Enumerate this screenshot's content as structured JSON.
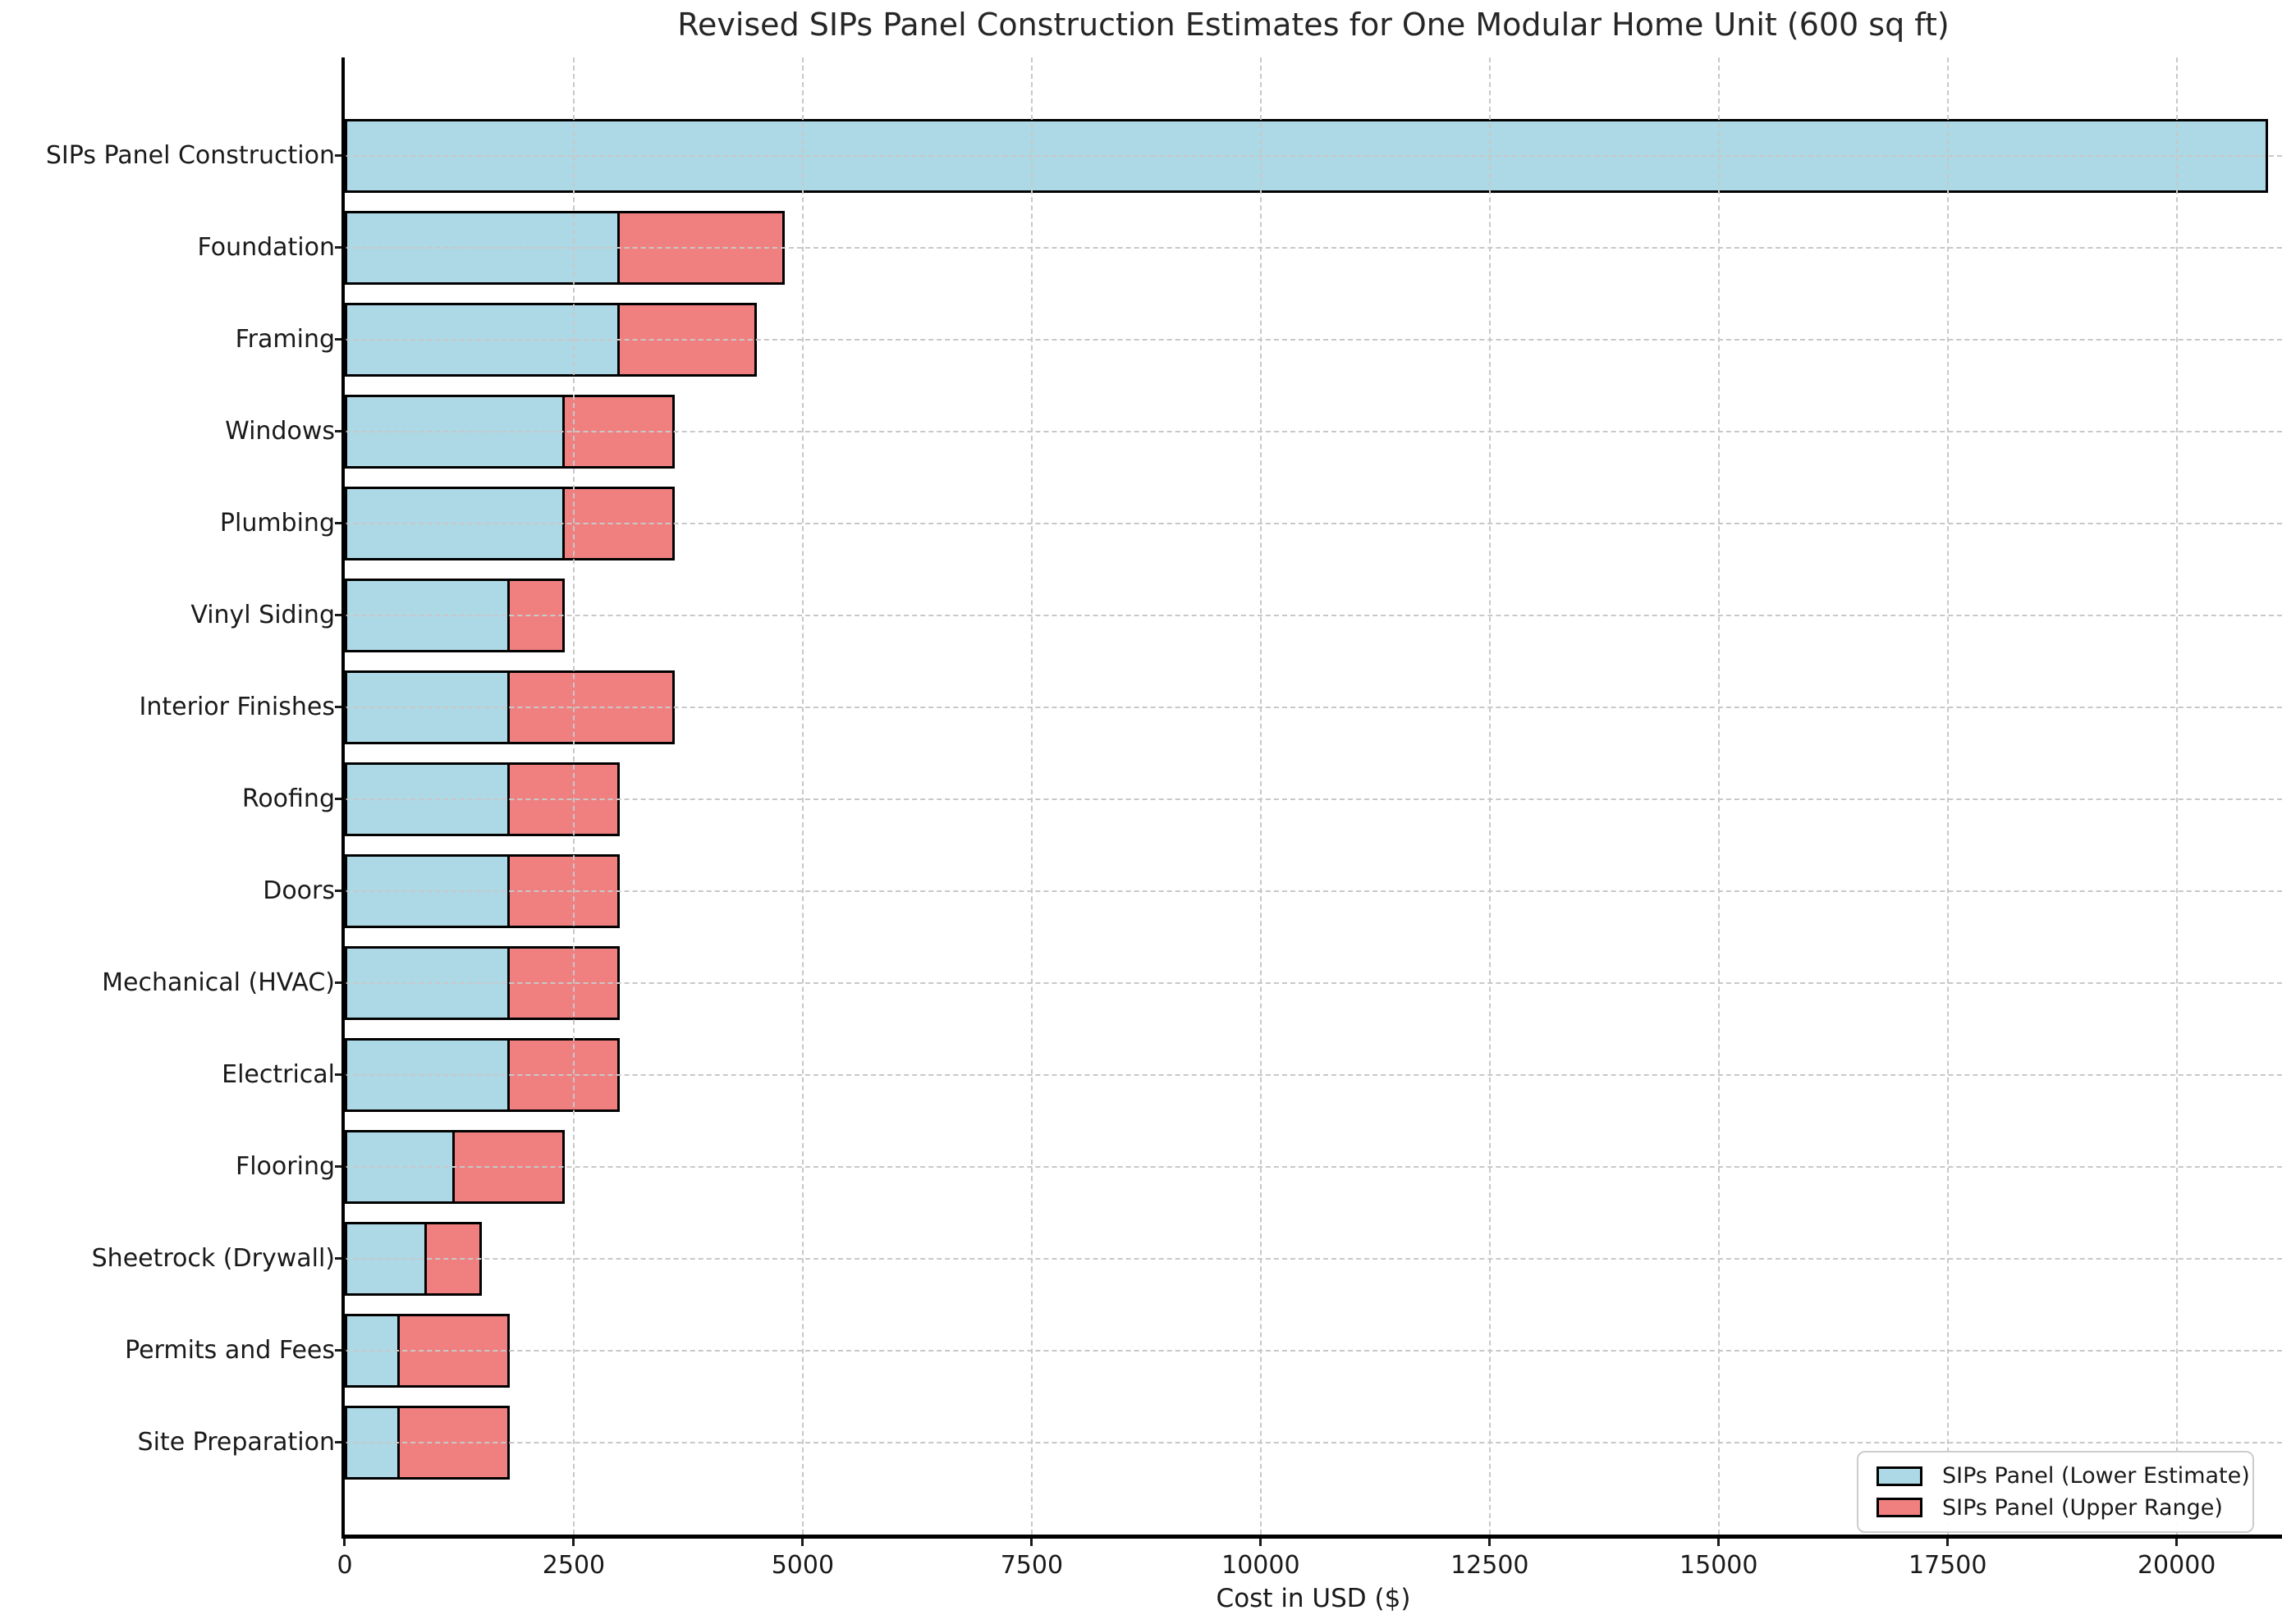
{
  "title": "Revised SIPs Panel Construction Estimates for One Modular Home Unit (600 sq ft)",
  "chart_data": {
    "type": "bar",
    "orientation": "horizontal",
    "title": "Revised SIPs Panel Construction Estimates for One Modular Home Unit (600 sq ft)",
    "xlabel": "Cost in USD ($)",
    "ylabel": "",
    "categories": [
      "SIPs Panel Construction",
      "Foundation",
      "Framing",
      "Windows",
      "Plumbing",
      "Vinyl Siding",
      "Interior Finishes",
      "Roofing",
      "Doors",
      "Mechanical (HVAC)",
      "Electrical",
      "Flooring",
      "Sheetrock (Drywall)",
      "Permits and Fees",
      "Site Preparation"
    ],
    "series": [
      {
        "name": "SIPs Panel (Lower Estimate)",
        "color": "#ADD8E6",
        "values": [
          21000,
          3000,
          3000,
          2400,
          2400,
          1800,
          1800,
          1800,
          1800,
          1800,
          1800,
          1200,
          900,
          600,
          600
        ]
      },
      {
        "name": "SIPs Panel (Upper Range)",
        "color": "#F08080",
        "stacked_on_previous": true,
        "values": [
          0,
          1800,
          1500,
          1200,
          1200,
          600,
          1800,
          1200,
          1200,
          1200,
          1200,
          1200,
          600,
          1200,
          1200
        ]
      }
    ],
    "upper_totals": [
      21000,
      4800,
      4500,
      3600,
      3600,
      2400,
      3600,
      3000,
      3000,
      3000,
      3000,
      2400,
      1500,
      1800,
      1800
    ],
    "xlim": [
      0,
      21150
    ],
    "xticks": [
      0,
      2500,
      5000,
      7500,
      10000,
      12500,
      15000,
      17500,
      20000
    ],
    "grid": true,
    "grid_style": "dashed",
    "bar_edge_color": "#000000",
    "legend_position": "lower right",
    "background": "#FFFFFF"
  }
}
